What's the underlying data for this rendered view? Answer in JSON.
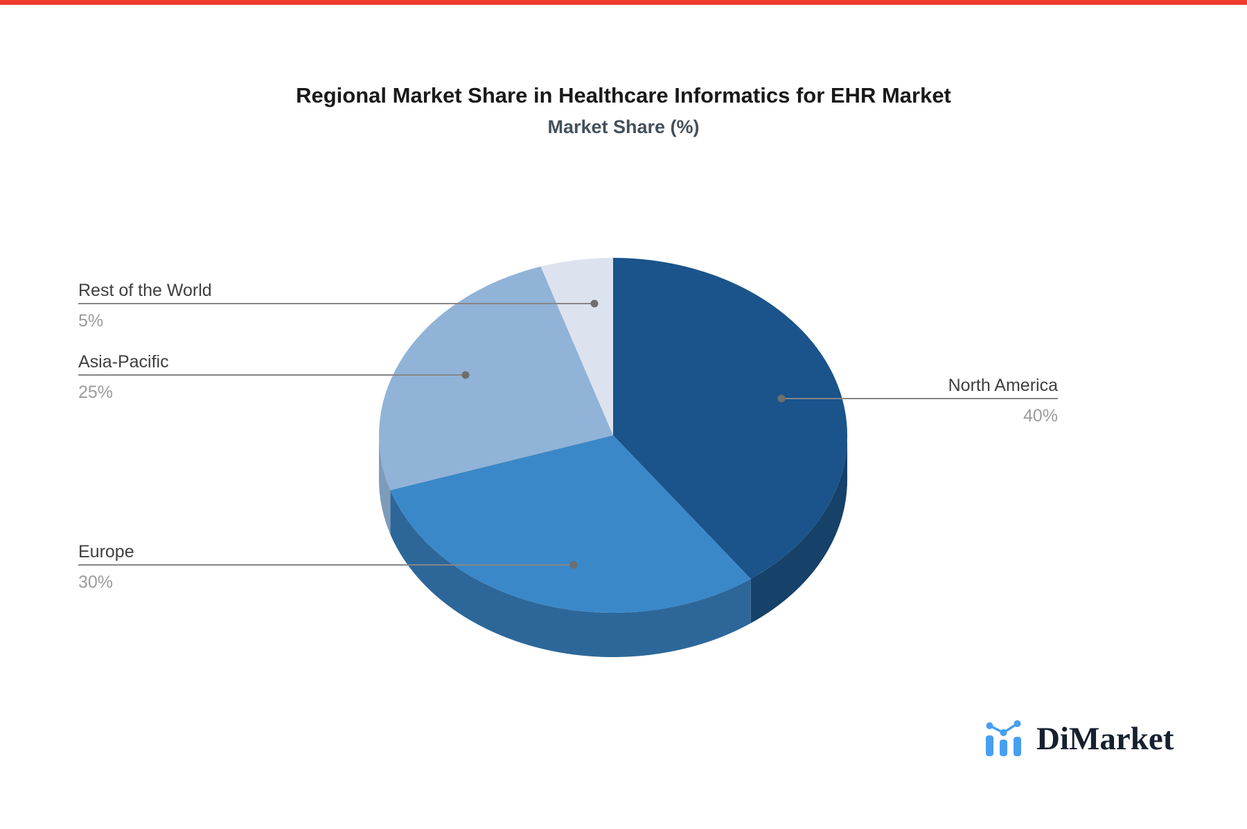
{
  "page": {
    "title": "Regional Market Share in Healthcare Informatics for EHR Market",
    "subtitle": "Market Share (%)",
    "top_accent_color": "#ee3b2e",
    "background_color": "#ffffff"
  },
  "brand": {
    "name": "DiMarket",
    "icon": "bar-chart-sparkline-icon",
    "icon_color": "#479ff1",
    "text_color": "#16202f"
  },
  "chart_data": {
    "type": "pie",
    "style": "3d",
    "title": "Regional Market Share in Healthcare Informatics for EHR Market",
    "subtitle": "Market Share (%)",
    "unit": "%",
    "start_angle_deg": 0,
    "direction": "clockwise",
    "slices": [
      {
        "label": "North America",
        "value": 40,
        "display": "40%",
        "color": "#1a548b",
        "side_color": "#164169"
      },
      {
        "label": "Europe",
        "value": 30,
        "display": "30%",
        "color": "#3b88c9",
        "side_color": "#2d6799"
      },
      {
        "label": "Asia-Pacific",
        "value": 25,
        "display": "25%",
        "color": "#91b3d7",
        "side_color": "#7e9cba"
      },
      {
        "label": "Rest of the World",
        "value": 5,
        "display": "5%",
        "color": "#dce3ef"
      }
    ],
    "label_color": "#3f3f3f",
    "percent_color": "#9b9b9b",
    "leader_line_color": "#868686",
    "leader_dot_color": "#6e6e6e"
  }
}
